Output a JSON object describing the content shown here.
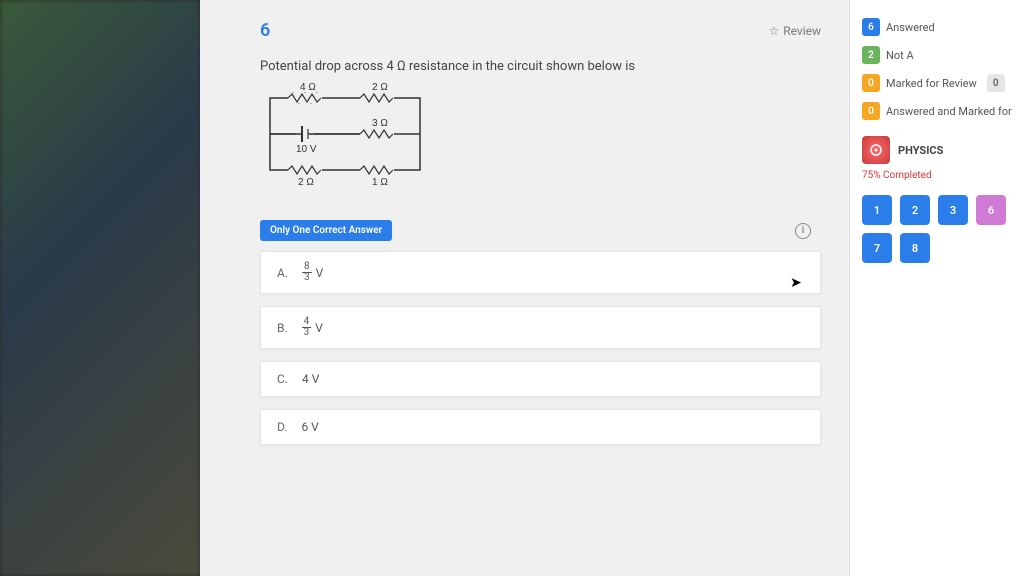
{
  "question": {
    "number": "6",
    "review_label": "Review",
    "text": "Potential drop across 4 Ω resistance in the circuit shown below is",
    "badge": "Only One Correct Answer",
    "circuit": {
      "r_top_left": "4 Ω",
      "r_top_right": "2 Ω",
      "r_mid": "3 Ω",
      "source": "10 V",
      "r_bot_left": "2 Ω",
      "r_bot_right": "1 Ω"
    },
    "options": [
      {
        "letter": "A.",
        "frac_n": "8",
        "frac_d": "3",
        "unit": "V"
      },
      {
        "letter": "B.",
        "frac_n": "4",
        "frac_d": "3",
        "unit": "V"
      },
      {
        "letter": "C.",
        "text": "4 V"
      },
      {
        "letter": "D.",
        "text": "6 V"
      }
    ]
  },
  "side": {
    "legend": [
      {
        "label": "Answered",
        "count": "6",
        "color": "#2b7de9"
      },
      {
        "label": "Not Answered",
        "count": "2",
        "color": "#6cb35f",
        "short": "Not A"
      },
      {
        "label": "Marked for Review",
        "count": "0",
        "color": "#f5a623",
        "extra": "0"
      },
      {
        "label": "Answered and Marked for Review",
        "count": "0",
        "color": "#f5a623",
        "short": "Answered and Marked for"
      }
    ],
    "subject": "PHYSICS",
    "progress": "75% Completed",
    "tiles": [
      {
        "n": "1",
        "color": "#2b7de9"
      },
      {
        "n": "2",
        "color": "#2b7de9"
      },
      {
        "n": "3",
        "color": "#2b7de9"
      },
      {
        "n": "6",
        "color": "#cf7bd6"
      },
      {
        "n": "7",
        "color": "#2b7de9"
      },
      {
        "n": "8",
        "color": "#2b7de9"
      }
    ]
  },
  "colors": {
    "accent": "#2b7de9"
  }
}
